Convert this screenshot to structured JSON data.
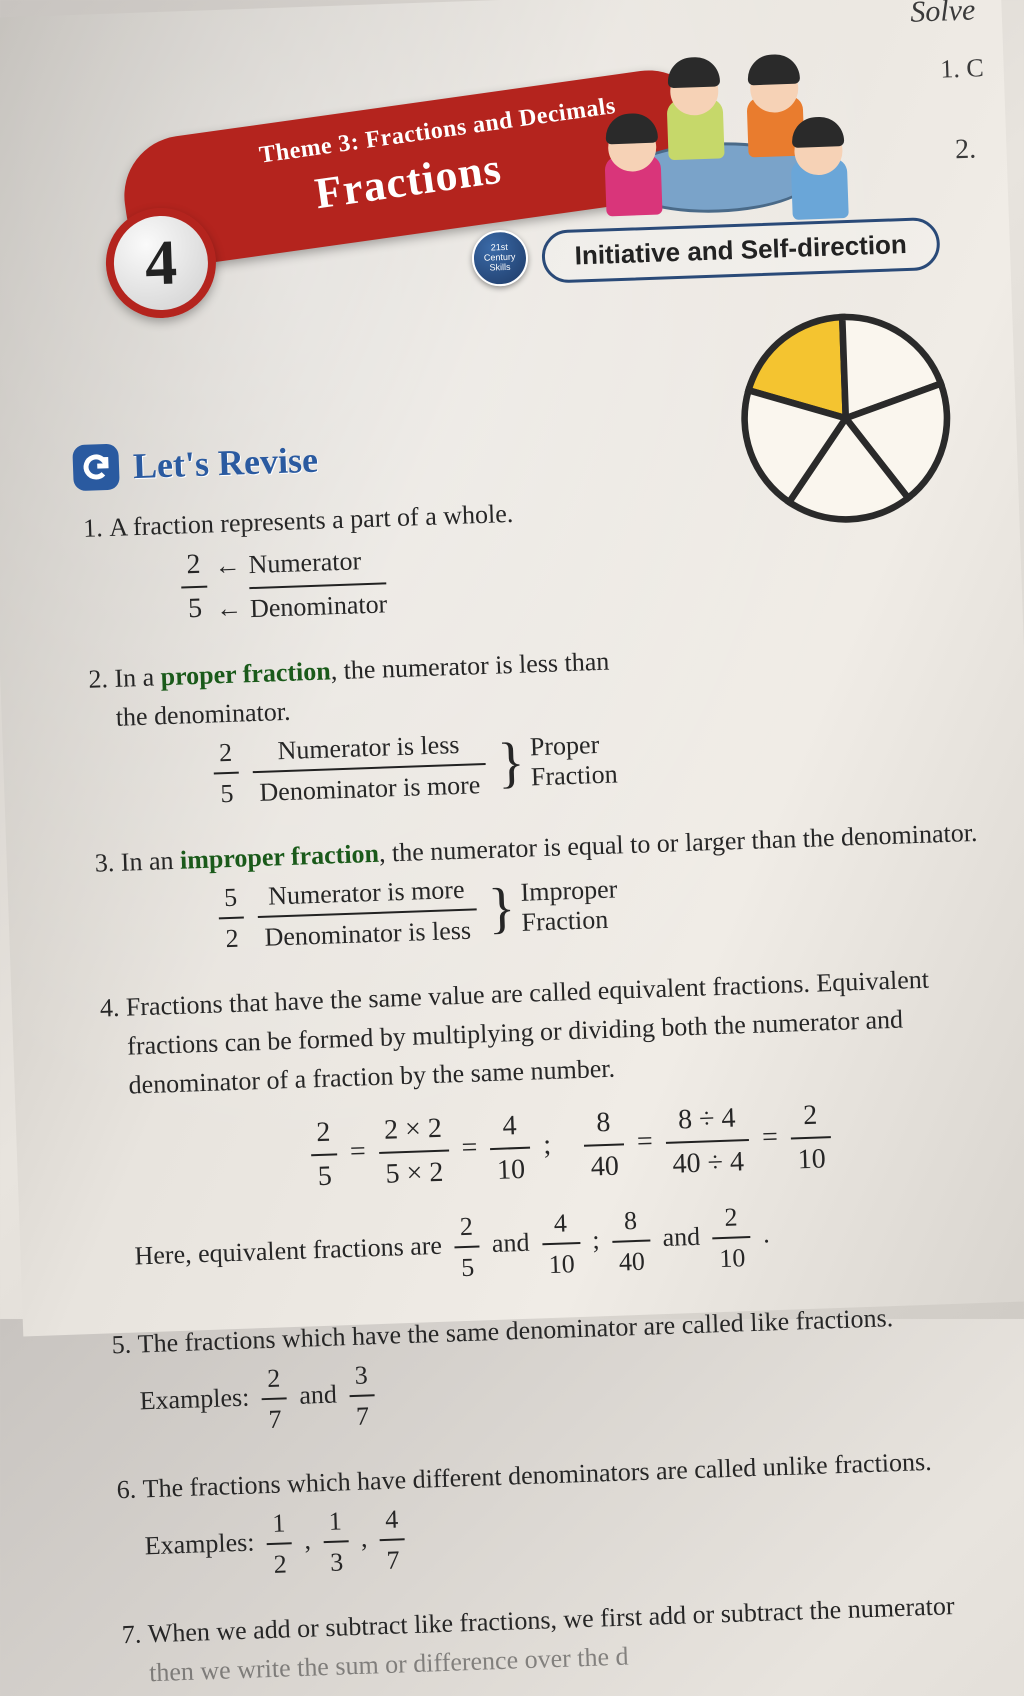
{
  "corner": {
    "solve": "Solve",
    "one": "1.  C",
    "two": "2."
  },
  "header": {
    "theme": "Theme 3: Fractions and Decimals",
    "title": "Fractions",
    "chapter_number": "4"
  },
  "skills": {
    "badge_lines": [
      "21st",
      "Century",
      "Skills"
    ],
    "label": "Initiative and Self-direction"
  },
  "revise": {
    "heading": "Let's Revise"
  },
  "pie": {
    "slices": 5,
    "shaded_index": 0,
    "shaded_color": "#f4c430",
    "empty_color": "#faf6ee",
    "line_color": "#2a2a2a",
    "line_width": 3
  },
  "items": {
    "p1": {
      "text": "A fraction represents a part of a whole.",
      "num": "2",
      "den": "5",
      "num_label": "Numerator",
      "den_label": "Denominator",
      "arrow": "←"
    },
    "p2": {
      "lead_a": "In a ",
      "term": "proper fraction",
      "lead_b": ", the numerator is less than",
      "line2": "the denominator.",
      "num": "2",
      "den": "5",
      "num_label": "Numerator is less",
      "den_label": "Denominator is more",
      "tag1": "Proper",
      "tag2": "Fraction"
    },
    "p3": {
      "lead_a": "In an ",
      "term": "improper fraction",
      "lead_b": ", the numerator is equal to or larger than the denominator.",
      "num": "5",
      "den": "2",
      "num_label": "Numerator is more",
      "den_label": "Denominator is less",
      "tag1": "Improper",
      "tag2": "Fraction"
    },
    "p4": {
      "text": "Fractions that have the same value are called equivalent fractions. Equivalent fractions can be formed by multiplying or dividing both the numerator and denominator of a fraction by the same number.",
      "eq_a_n": "2",
      "eq_a_d": "5",
      "eq_b_n": "2 × 2",
      "eq_b_d": "5 × 2",
      "eq_c_n": "4",
      "eq_c_d": "10",
      "eq_d_n": "8",
      "eq_d_d": "40",
      "eq_e_n": "8 ÷ 4",
      "eq_e_d": "40 ÷ 4",
      "eq_f_n": "2",
      "eq_f_d": "10",
      "eq": "=",
      "semi": ";",
      "here": "Here, equivalent fractions are ",
      "and": " and ",
      "sep": "; ",
      "dot": "."
    },
    "p5": {
      "text": "The fractions which have the same denominator are called like fractions.",
      "ex_label": "Examples: ",
      "a_n": "2",
      "a_d": "7",
      "b_n": "3",
      "b_d": "7",
      "and": " and "
    },
    "p6": {
      "text": "The fractions which have different denominators are called unlike fractions.",
      "ex_label": "Examples: ",
      "a_n": "1",
      "a_d": "2",
      "b_n": "1",
      "b_d": "3",
      "c_n": "4",
      "c_d": "7",
      "comma": ", "
    },
    "p7": {
      "text": "When we add or subtract like fractions, we first add or subtract the numerator",
      "cut": "then we write the sum or difference over the d"
    }
  }
}
